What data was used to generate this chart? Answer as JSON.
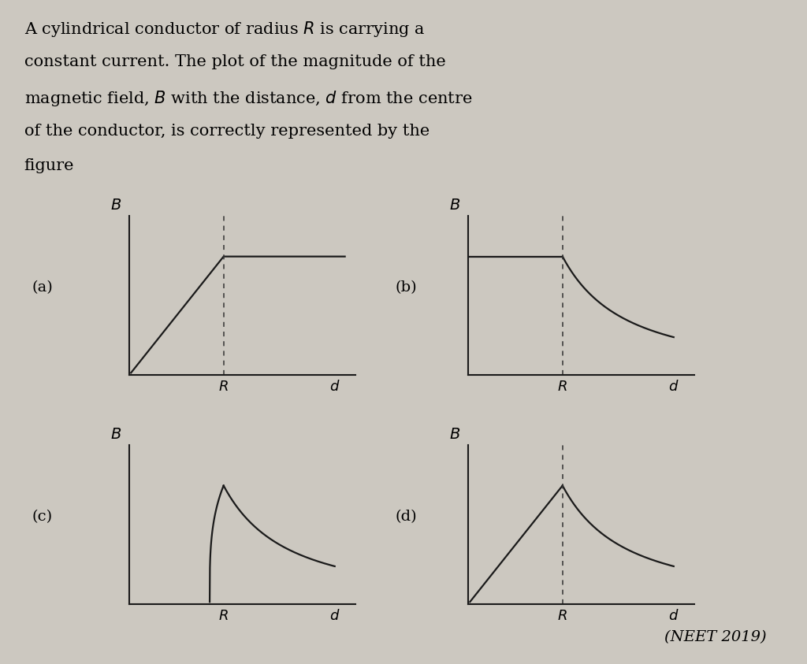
{
  "background_color": "#ccc8c0",
  "line_color": "#1a1a1a",
  "dashed_color": "#333333",
  "title_lines": [
    "A cylindrical conductor of radius ",
    "constant current. The plot of the magnitude of the",
    "magnetic field, ",
    "of the conductor, is correctly represented by the",
    "figure"
  ],
  "label_a": "(a)",
  "label_b": "(b)",
  "label_c": "(c)",
  "label_d": "(d)",
  "neet_label": "(NEET 2019)",
  "R_val": 1.0,
  "d_max": 2.2,
  "B_max": 1.0
}
